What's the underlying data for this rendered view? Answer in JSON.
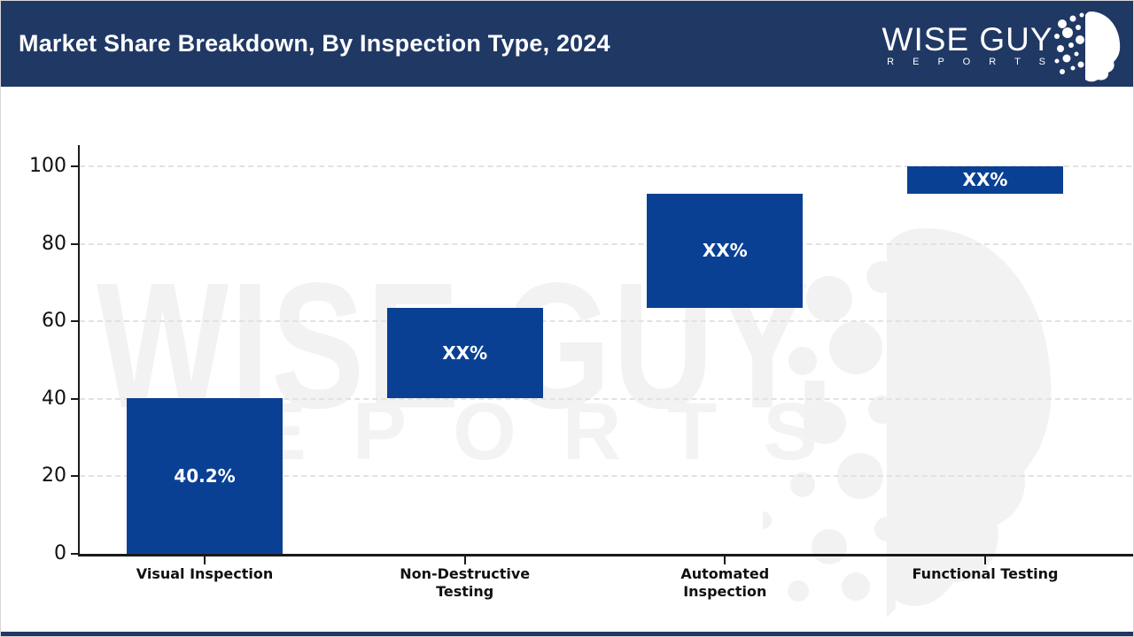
{
  "header": {
    "title": "Market Share Breakdown, By Inspection Type, 2024",
    "background_color": "#203864",
    "logo": {
      "line1": "WISE GUY",
      "line2": "R E P O R T S"
    }
  },
  "watermark": {
    "line1": "WISE GUY.",
    "line2": "REPORTS"
  },
  "footer": {
    "bar_color": "#203864"
  },
  "chart_data": {
    "type": "bar",
    "subtype": "waterfall",
    "title": "Market Share Breakdown, By Inspection Type, 2024",
    "categories": [
      "Visual Inspection",
      "Non-Destructive Testing",
      "Automated Inspection",
      "Functional Testing"
    ],
    "category_lines": [
      [
        "Visual Inspection"
      ],
      [
        "Non-Destructive",
        "Testing"
      ],
      [
        "Automated",
        "Inspection"
      ],
      [
        "Functional Testing"
      ]
    ],
    "segments": [
      {
        "start": 0,
        "end": 40.2
      },
      {
        "start": 40.2,
        "end": 63.5
      },
      {
        "start": 63.5,
        "end": 93.0
      },
      {
        "start": 93.0,
        "end": 100.0
      }
    ],
    "bar_labels": [
      "40.2%",
      "XX%",
      "XX%",
      "XX%"
    ],
    "y_ticks": [
      0,
      20,
      40,
      60,
      80,
      100
    ],
    "ylim": [
      0,
      105
    ],
    "xlabel": "",
    "ylabel": "",
    "grid": "horizontal-dashed",
    "legend": "none",
    "bar_color": "#0A4094",
    "bar_label_color": "#FFFFFF",
    "gridline_color": "#E2E2E2"
  }
}
